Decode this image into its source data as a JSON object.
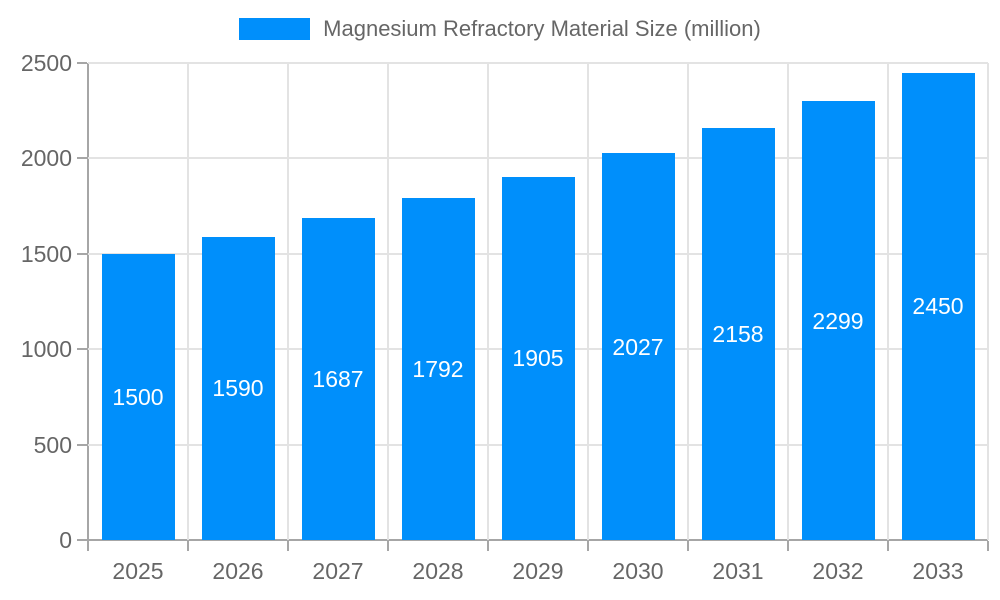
{
  "chart_data": {
    "type": "bar",
    "title": "Magnesium Refractory Material Size (million)",
    "categories": [
      "2025",
      "2026",
      "2027",
      "2028",
      "2029",
      "2030",
      "2031",
      "2032",
      "2033"
    ],
    "values": [
      1500,
      1590,
      1687,
      1792,
      1905,
      2027,
      2158,
      2299,
      2450
    ],
    "xlabel": "",
    "ylabel": "",
    "ylim": [
      0,
      2500
    ],
    "y_ticks": [
      0,
      500,
      1000,
      1500,
      2000,
      2500
    ],
    "grid": true,
    "legend_position": "top",
    "data_labels": "inside-center-white"
  },
  "legend": {
    "series_label": "Magnesium Refractory Material Size (million)"
  },
  "colors": {
    "bar": "#008FFB",
    "bar_label": "#ffffff",
    "axis_text": "#666666",
    "grid_line": "#e3e3e3",
    "axis_line": "#a6a6a6"
  }
}
